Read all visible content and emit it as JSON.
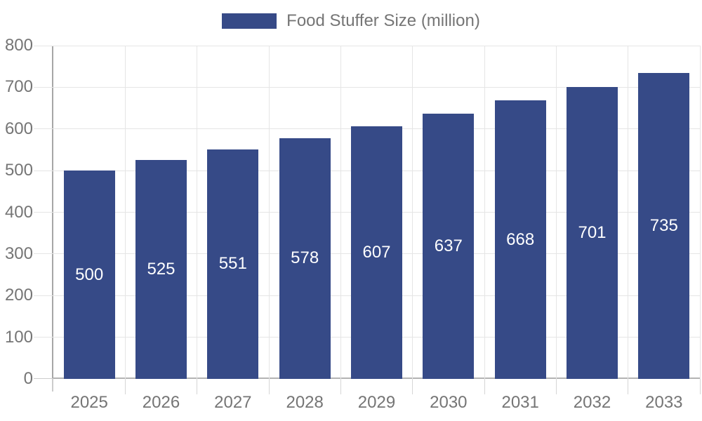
{
  "legend": {
    "label": "Food Stuffer Size (million)"
  },
  "chart_data": {
    "type": "bar",
    "title": "",
    "categories": [
      "2025",
      "2026",
      "2027",
      "2028",
      "2029",
      "2030",
      "2031",
      "2032",
      "2033"
    ],
    "series": [
      {
        "name": "Food Stuffer Size (million)",
        "values": [
          500,
          525,
          551,
          578,
          607,
          637,
          668,
          701,
          735
        ]
      }
    ],
    "xlabel": "",
    "ylabel": "",
    "ylim": [
      0,
      800
    ],
    "y_tick_step": 100,
    "y_tick_labels": [
      "0",
      "100",
      "200",
      "300",
      "400",
      "500",
      "600",
      "700",
      "800"
    ],
    "grid": true,
    "legend_position": "top-center",
    "value_label_position": "inside-center",
    "colors": {
      "bar": "#364a87",
      "value_label": "#ffffff",
      "axis_text": "#757575",
      "gridline": "#e5e5e5",
      "axis_line": "#a6a6a6",
      "baseline": "#b3b3b3",
      "tick": "#d6d6d6",
      "background": "#ffffff"
    }
  }
}
